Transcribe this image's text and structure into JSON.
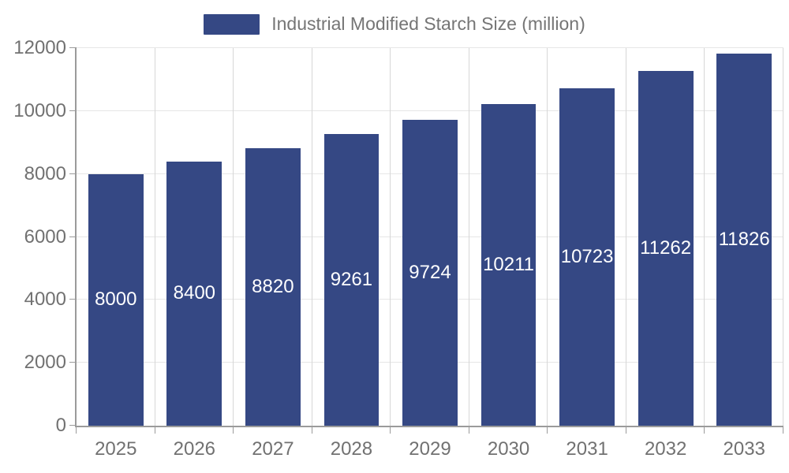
{
  "legend": {
    "label": "Industrial Modified Starch Size (million)"
  },
  "colors": {
    "bar": "#354884",
    "axis": "#9b9b9b",
    "grid_horizontal": "#e6e6e6",
    "grid_vertical": "#d7d7d7",
    "tick_label": "#717171",
    "legend_text": "#757575",
    "bar_label": "#ffffff",
    "background": "#ffffff"
  },
  "chart_data": {
    "type": "bar",
    "title": "Industrial Modified Starch Size (million)",
    "categories": [
      "2025",
      "2026",
      "2027",
      "2028",
      "2029",
      "2030",
      "2031",
      "2032",
      "2033"
    ],
    "values": [
      8000,
      8400,
      8820,
      9261,
      9724,
      10211,
      10723,
      11262,
      11826
    ],
    "xlabel": "",
    "ylabel": "",
    "ylim": [
      0,
      12000
    ],
    "yticks": [
      0,
      2000,
      4000,
      6000,
      8000,
      10000,
      12000
    ],
    "grid": true,
    "legend_position": "top-center",
    "value_labels": "inside-center",
    "bar_slot_fraction": 0.7
  }
}
